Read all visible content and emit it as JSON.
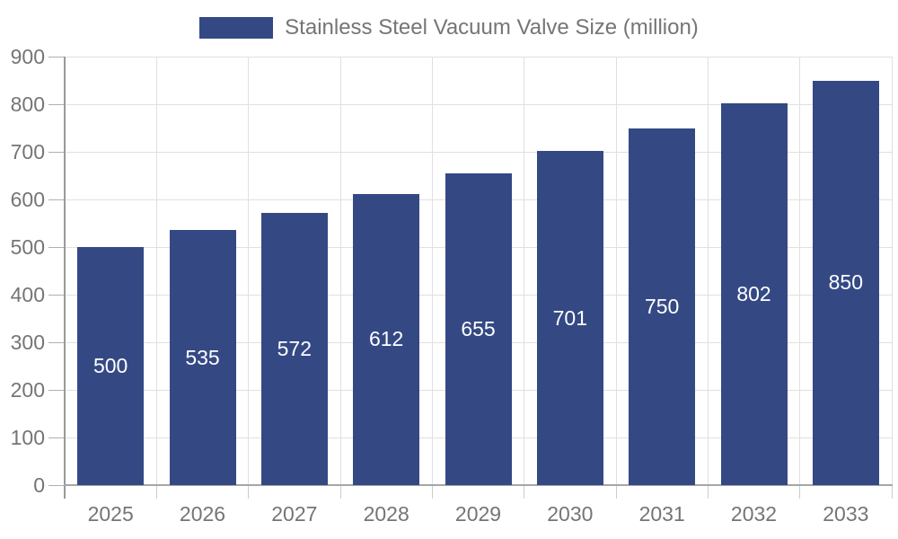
{
  "chart_data": {
    "type": "bar",
    "title": "Stainless Steel Vacuum Valve Size (million)",
    "series": [
      {
        "name": "Stainless Steel Vacuum Valve Size (million)",
        "values": [
          500,
          535,
          572,
          612,
          655,
          701,
          750,
          802,
          850
        ]
      }
    ],
    "categories": [
      "2025",
      "2026",
      "2027",
      "2028",
      "2029",
      "2030",
      "2031",
      "2032",
      "2033"
    ],
    "xlabel": "",
    "ylabel": "",
    "ylim": [
      0,
      900
    ],
    "ytick_step": 100,
    "grid": true,
    "legend_position": "top",
    "value_labels": "inside-center",
    "colors": {
      "bar": "#344984",
      "bar_value_text": "#ffffff",
      "axis_text": "#757575",
      "grid_line": "#e0e0e0",
      "y_axis_line": "#999999",
      "x_axis_line": "#a6a6a6",
      "y_tick": "#b0b0b0",
      "x_tick": "#cccccc",
      "background": "#ffffff"
    }
  }
}
